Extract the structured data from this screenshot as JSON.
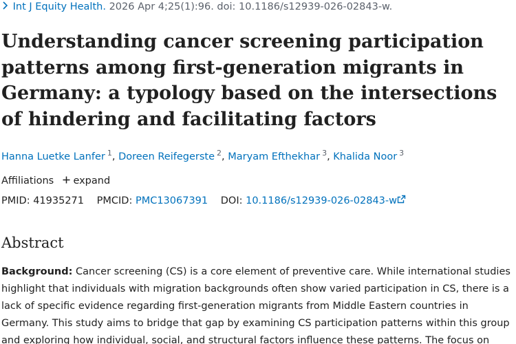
{
  "citation": {
    "journal": "Int J Equity Health.",
    "details": "2026 Apr 4;25(1):96. doi: 10.1186/s12939-026-02843-w."
  },
  "title": "Understanding cancer screening participation patterns among first-generation migrants in Germany: a typology based on the intersections of hindering and facilitating factors",
  "authors": [
    {
      "name": "Hanna Luetke Lanfer",
      "ref": "1"
    },
    {
      "name": "Doreen Reifegerste",
      "ref": "2"
    },
    {
      "name": "Maryam Efthekhar",
      "ref": "3"
    },
    {
      "name": "Khalida Noor",
      "ref": "3"
    }
  ],
  "affiliations": {
    "label": "Affiliations",
    "toggle": "expand"
  },
  "identifiers": {
    "pmid_label": "PMID:",
    "pmid": "41935271",
    "pmcid_label": "PMCID:",
    "pmcid": "PMC13067391",
    "doi_label": "DOI:",
    "doi": "10.1186/s12939-026-02843-w"
  },
  "abstract": {
    "heading": "Abstract",
    "background_label": "Background:",
    "background_text": "Cancer screening (CS) is a core element of preventive care. While international studies highlight that individuals with migration backgrounds often show varied participation in CS, there is a lack of specific evidence regarding first-generation migrants from Middle Eastern countries in Germany. This study aims to bridge that gap by examining CS participation patterns within this group and exploring how individual, social, and structural factors influence these patterns. The focus on"
  }
}
